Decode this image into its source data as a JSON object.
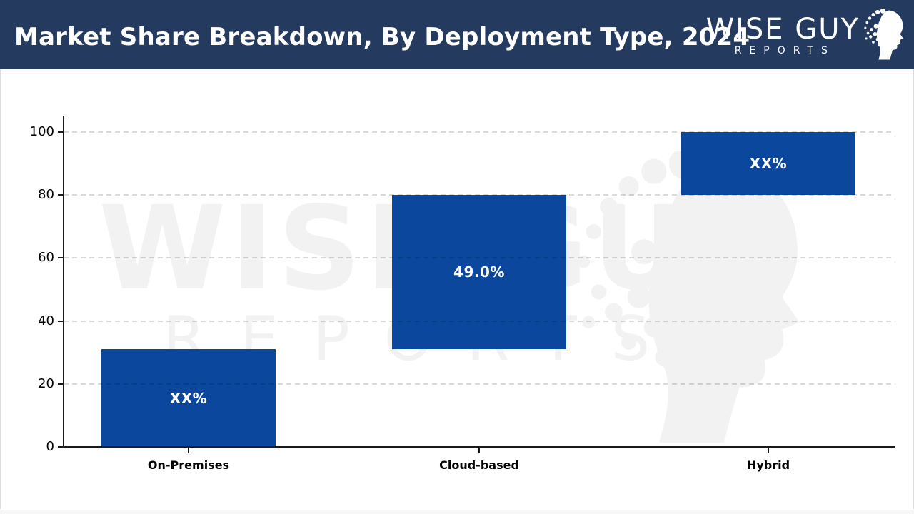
{
  "header": {
    "title": "Market Share Breakdown, By Deployment Type, 2024",
    "bg_color": "#243a5e",
    "logo": {
      "line1": "WISE GUY",
      "line2": "REPORTS"
    }
  },
  "watermark": {
    "line1": "WISE GUY",
    "line2": "REPORTS"
  },
  "chart_data": {
    "type": "bar",
    "variant": "floating-waterfall",
    "title": "Market Share Breakdown, By Deployment Type, 2024",
    "categories": [
      "On-Premises",
      "Cloud-based",
      "Hybrid"
    ],
    "bars": [
      {
        "category": "On-Premises",
        "from": 0,
        "to": 31,
        "label": "XX%"
      },
      {
        "category": "Cloud-based",
        "from": 31,
        "to": 80,
        "label": "49.0%"
      },
      {
        "category": "Hybrid",
        "from": 80,
        "to": 100,
        "label": "XX%"
      }
    ],
    "xlabel": "",
    "ylabel": "",
    "ylim": [
      0,
      100
    ],
    "yticks": [
      0,
      20,
      40,
      60,
      80,
      100
    ],
    "grid": "dashed-horizontal",
    "legend": "none",
    "bar_color": "#0b479c",
    "gridline_color": "#d9d9d9",
    "axis_color": "#1a1a1a",
    "value_label_color": "#ffffff"
  }
}
